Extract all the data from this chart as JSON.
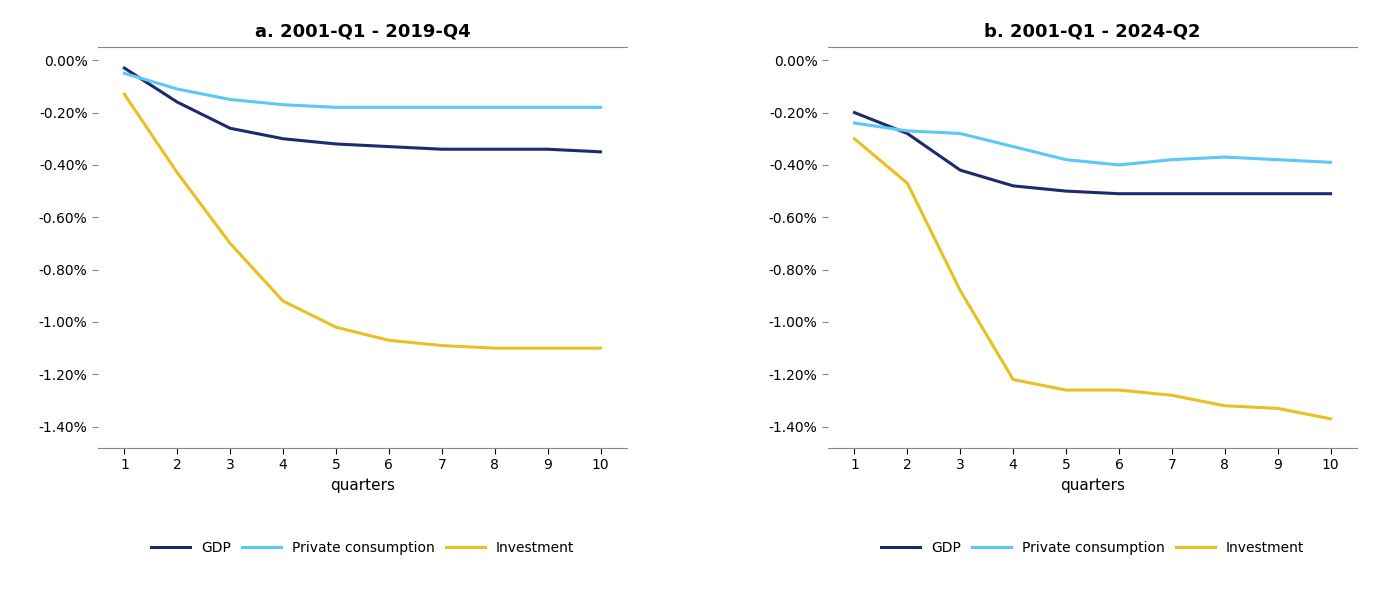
{
  "panel_a": {
    "title": "a. 2001-Q1 - 2019-Q4",
    "quarters": [
      1,
      2,
      3,
      4,
      5,
      6,
      7,
      8,
      9,
      10
    ],
    "gdp": [
      -0.0003,
      -0.0016,
      -0.0026,
      -0.003,
      -0.0032,
      -0.0033,
      -0.0034,
      -0.0034,
      -0.0034,
      -0.0035
    ],
    "priv_con": [
      -0.0005,
      -0.0011,
      -0.0015,
      -0.0017,
      -0.0018,
      -0.0018,
      -0.0018,
      -0.0018,
      -0.0018,
      -0.0018
    ],
    "invest": [
      -0.0013,
      -0.0043,
      -0.007,
      -0.0092,
      -0.0102,
      -0.0107,
      -0.0109,
      -0.011,
      -0.011,
      -0.011
    ]
  },
  "panel_b": {
    "title": "b. 2001-Q1 - 2024-Q2",
    "quarters": [
      1,
      2,
      3,
      4,
      5,
      6,
      7,
      8,
      9,
      10
    ],
    "gdp": [
      -0.002,
      -0.0028,
      -0.0042,
      -0.0048,
      -0.005,
      -0.0051,
      -0.0051,
      -0.0051,
      -0.0051,
      -0.0051
    ],
    "priv_con": [
      -0.0024,
      -0.0027,
      -0.0028,
      -0.0033,
      -0.0038,
      -0.004,
      -0.0038,
      -0.0037,
      -0.0038,
      -0.0039
    ],
    "invest": [
      -0.003,
      -0.0047,
      -0.0088,
      -0.0122,
      -0.0126,
      -0.0126,
      -0.0128,
      -0.0132,
      -0.0133,
      -0.0137
    ]
  },
  "colors": {
    "gdp": "#1e2a6e",
    "priv_con": "#5bc8f5",
    "invest": "#e8c020"
  },
  "legend_labels": [
    "GDP",
    "Private consumption",
    "Investment"
  ],
  "xlabel": "quarters",
  "ylim": [
    -0.0148,
    0.0005
  ],
  "yticks": [
    0.0,
    -0.002,
    -0.004,
    -0.006,
    -0.008,
    -0.01,
    -0.012,
    -0.014
  ],
  "background_color": "#ffffff",
  "line_width": 2.2
}
